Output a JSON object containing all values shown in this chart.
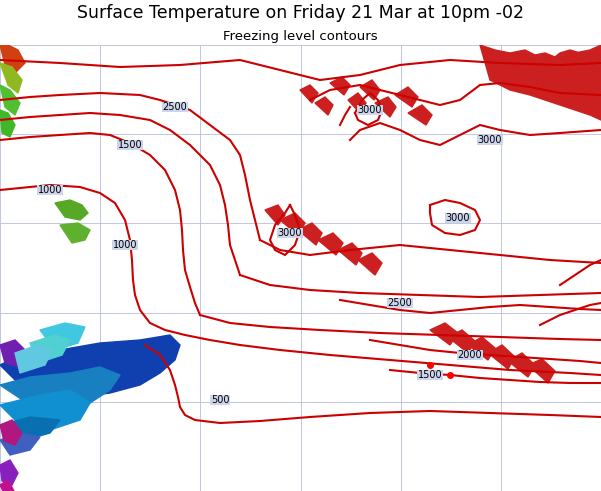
{
  "title": "Surface Temperature on Friday 21 Mar at 10pm -02",
  "subtitle": "Freezing level contours",
  "bg_color": "#ffffff",
  "ocean_color": "#cdd5ec",
  "grid_color": "#b8bedd",
  "contour_color": "#cc0000",
  "title_fontsize": 12.5,
  "subtitle_fontsize": 9.5,
  "fig_width": 6.01,
  "fig_height": 4.91,
  "dpi": 100
}
